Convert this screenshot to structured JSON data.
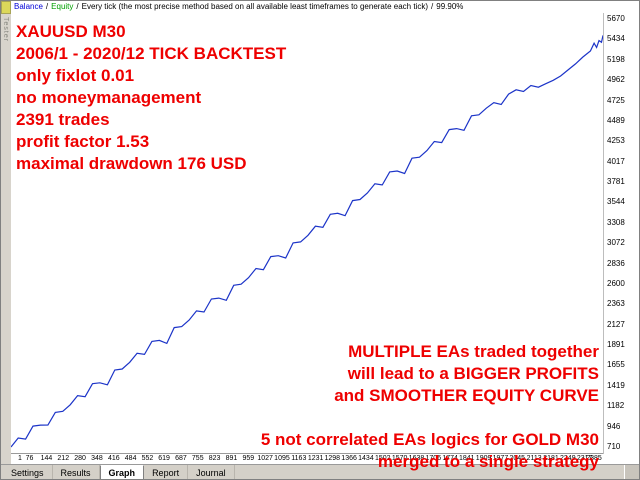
{
  "left_strip": {
    "label": "Tester"
  },
  "header": {
    "balance_label": "Balance",
    "sep": "/",
    "equity_label": "Equity",
    "method_text": "Every tick (the most precise method based on all available least timeframes to generate each tick)",
    "quality_text": "99.90%"
  },
  "annotations": {
    "text_color": "#ee0000",
    "stats_block": [
      "XAUUSD M30",
      "2006/1 - 2020/12 TICK BACKTEST",
      "only fixlot 0.01",
      "no moneymanagement",
      "2391 trades",
      "profit factor 1.53",
      "maximal drawdown 176 USD"
    ],
    "promo_block": [
      "MULTIPLE EAs traded together",
      "will lead to a BIGGER PROFITS",
      "and SMOOTHER EQUITY CURVE"
    ],
    "footer_block": [
      "5 not correlated EAs logics for GOLD M30",
      "merged to a single strategy"
    ]
  },
  "chart_data": {
    "type": "line",
    "title": "",
    "xlabel": "",
    "ylabel": "",
    "grid": false,
    "legend_position": "top-left",
    "xlim": [
      1,
      2391
    ],
    "ylim": [
      640,
      5740
    ],
    "x_ticks": [
      1,
      76,
      144,
      212,
      280,
      348,
      416,
      484,
      552,
      619,
      687,
      755,
      823,
      891,
      959,
      1027,
      1095,
      1163,
      1231,
      1298,
      1366,
      1434,
      1502,
      1570,
      1638,
      1706,
      1774,
      1841,
      1909,
      1977,
      2045,
      2113,
      2181,
      2249,
      2317,
      2385
    ],
    "y_ticks": [
      5670,
      5434,
      5198,
      4962,
      4725,
      4489,
      4253,
      4017,
      3781,
      3544,
      3308,
      3072,
      2836,
      2600,
      2363,
      2127,
      1891,
      1655,
      1419,
      1182,
      946,
      710
    ],
    "series": [
      {
        "name": "Balance",
        "color": "#1c34c8",
        "points": [
          [
            1,
            710
          ],
          [
            30,
            814
          ],
          [
            60,
            801
          ],
          [
            90,
            952
          ],
          [
            120,
            963
          ],
          [
            150,
            965
          ],
          [
            180,
            1111
          ],
          [
            210,
            1123
          ],
          [
            240,
            1199
          ],
          [
            270,
            1305
          ],
          [
            300,
            1292
          ],
          [
            330,
            1443
          ],
          [
            360,
            1454
          ],
          [
            390,
            1430
          ],
          [
            420,
            1602
          ],
          [
            450,
            1614
          ],
          [
            480,
            1690
          ],
          [
            510,
            1796
          ],
          [
            540,
            1783
          ],
          [
            570,
            1934
          ],
          [
            600,
            1945
          ],
          [
            630,
            1910
          ],
          [
            660,
            2093
          ],
          [
            690,
            2105
          ],
          [
            720,
            2181
          ],
          [
            750,
            2287
          ],
          [
            780,
            2274
          ],
          [
            810,
            2425
          ],
          [
            840,
            2436
          ],
          [
            870,
            2410
          ],
          [
            900,
            2584
          ],
          [
            930,
            2596
          ],
          [
            960,
            2672
          ],
          [
            990,
            2778
          ],
          [
            1020,
            2765
          ],
          [
            1050,
            2916
          ],
          [
            1080,
            2927
          ],
          [
            1110,
            2900
          ],
          [
            1140,
            3075
          ],
          [
            1170,
            3087
          ],
          [
            1200,
            3163
          ],
          [
            1230,
            3269
          ],
          [
            1260,
            3256
          ],
          [
            1290,
            3407
          ],
          [
            1320,
            3418
          ],
          [
            1350,
            3390
          ],
          [
            1380,
            3566
          ],
          [
            1410,
            3578
          ],
          [
            1440,
            3654
          ],
          [
            1470,
            3760
          ],
          [
            1500,
            3747
          ],
          [
            1530,
            3898
          ],
          [
            1560,
            3909
          ],
          [
            1590,
            3880
          ],
          [
            1620,
            4057
          ],
          [
            1650,
            4069
          ],
          [
            1680,
            4145
          ],
          [
            1710,
            4251
          ],
          [
            1740,
            4238
          ],
          [
            1770,
            4389
          ],
          [
            1800,
            4400
          ],
          [
            1830,
            4380
          ],
          [
            1860,
            4548
          ],
          [
            1890,
            4560
          ],
          [
            1920,
            4636
          ],
          [
            1950,
            4700
          ],
          [
            1980,
            4680
          ],
          [
            2010,
            4800
          ],
          [
            2040,
            4850
          ],
          [
            2070,
            4830
          ],
          [
            2100,
            4900
          ],
          [
            2130,
            4880
          ],
          [
            2160,
            4920
          ],
          [
            2190,
            4960
          ],
          [
            2220,
            5010
          ],
          [
            2250,
            5080
          ],
          [
            2280,
            5150
          ],
          [
            2310,
            5230
          ],
          [
            2340,
            5300
          ],
          [
            2355,
            5390
          ],
          [
            2365,
            5340
          ],
          [
            2375,
            5420
          ],
          [
            2385,
            5400
          ],
          [
            2391,
            5480
          ]
        ]
      }
    ]
  },
  "tabs": {
    "items": [
      "Settings",
      "Results",
      "Graph",
      "Report",
      "Journal"
    ],
    "active": "Graph"
  }
}
